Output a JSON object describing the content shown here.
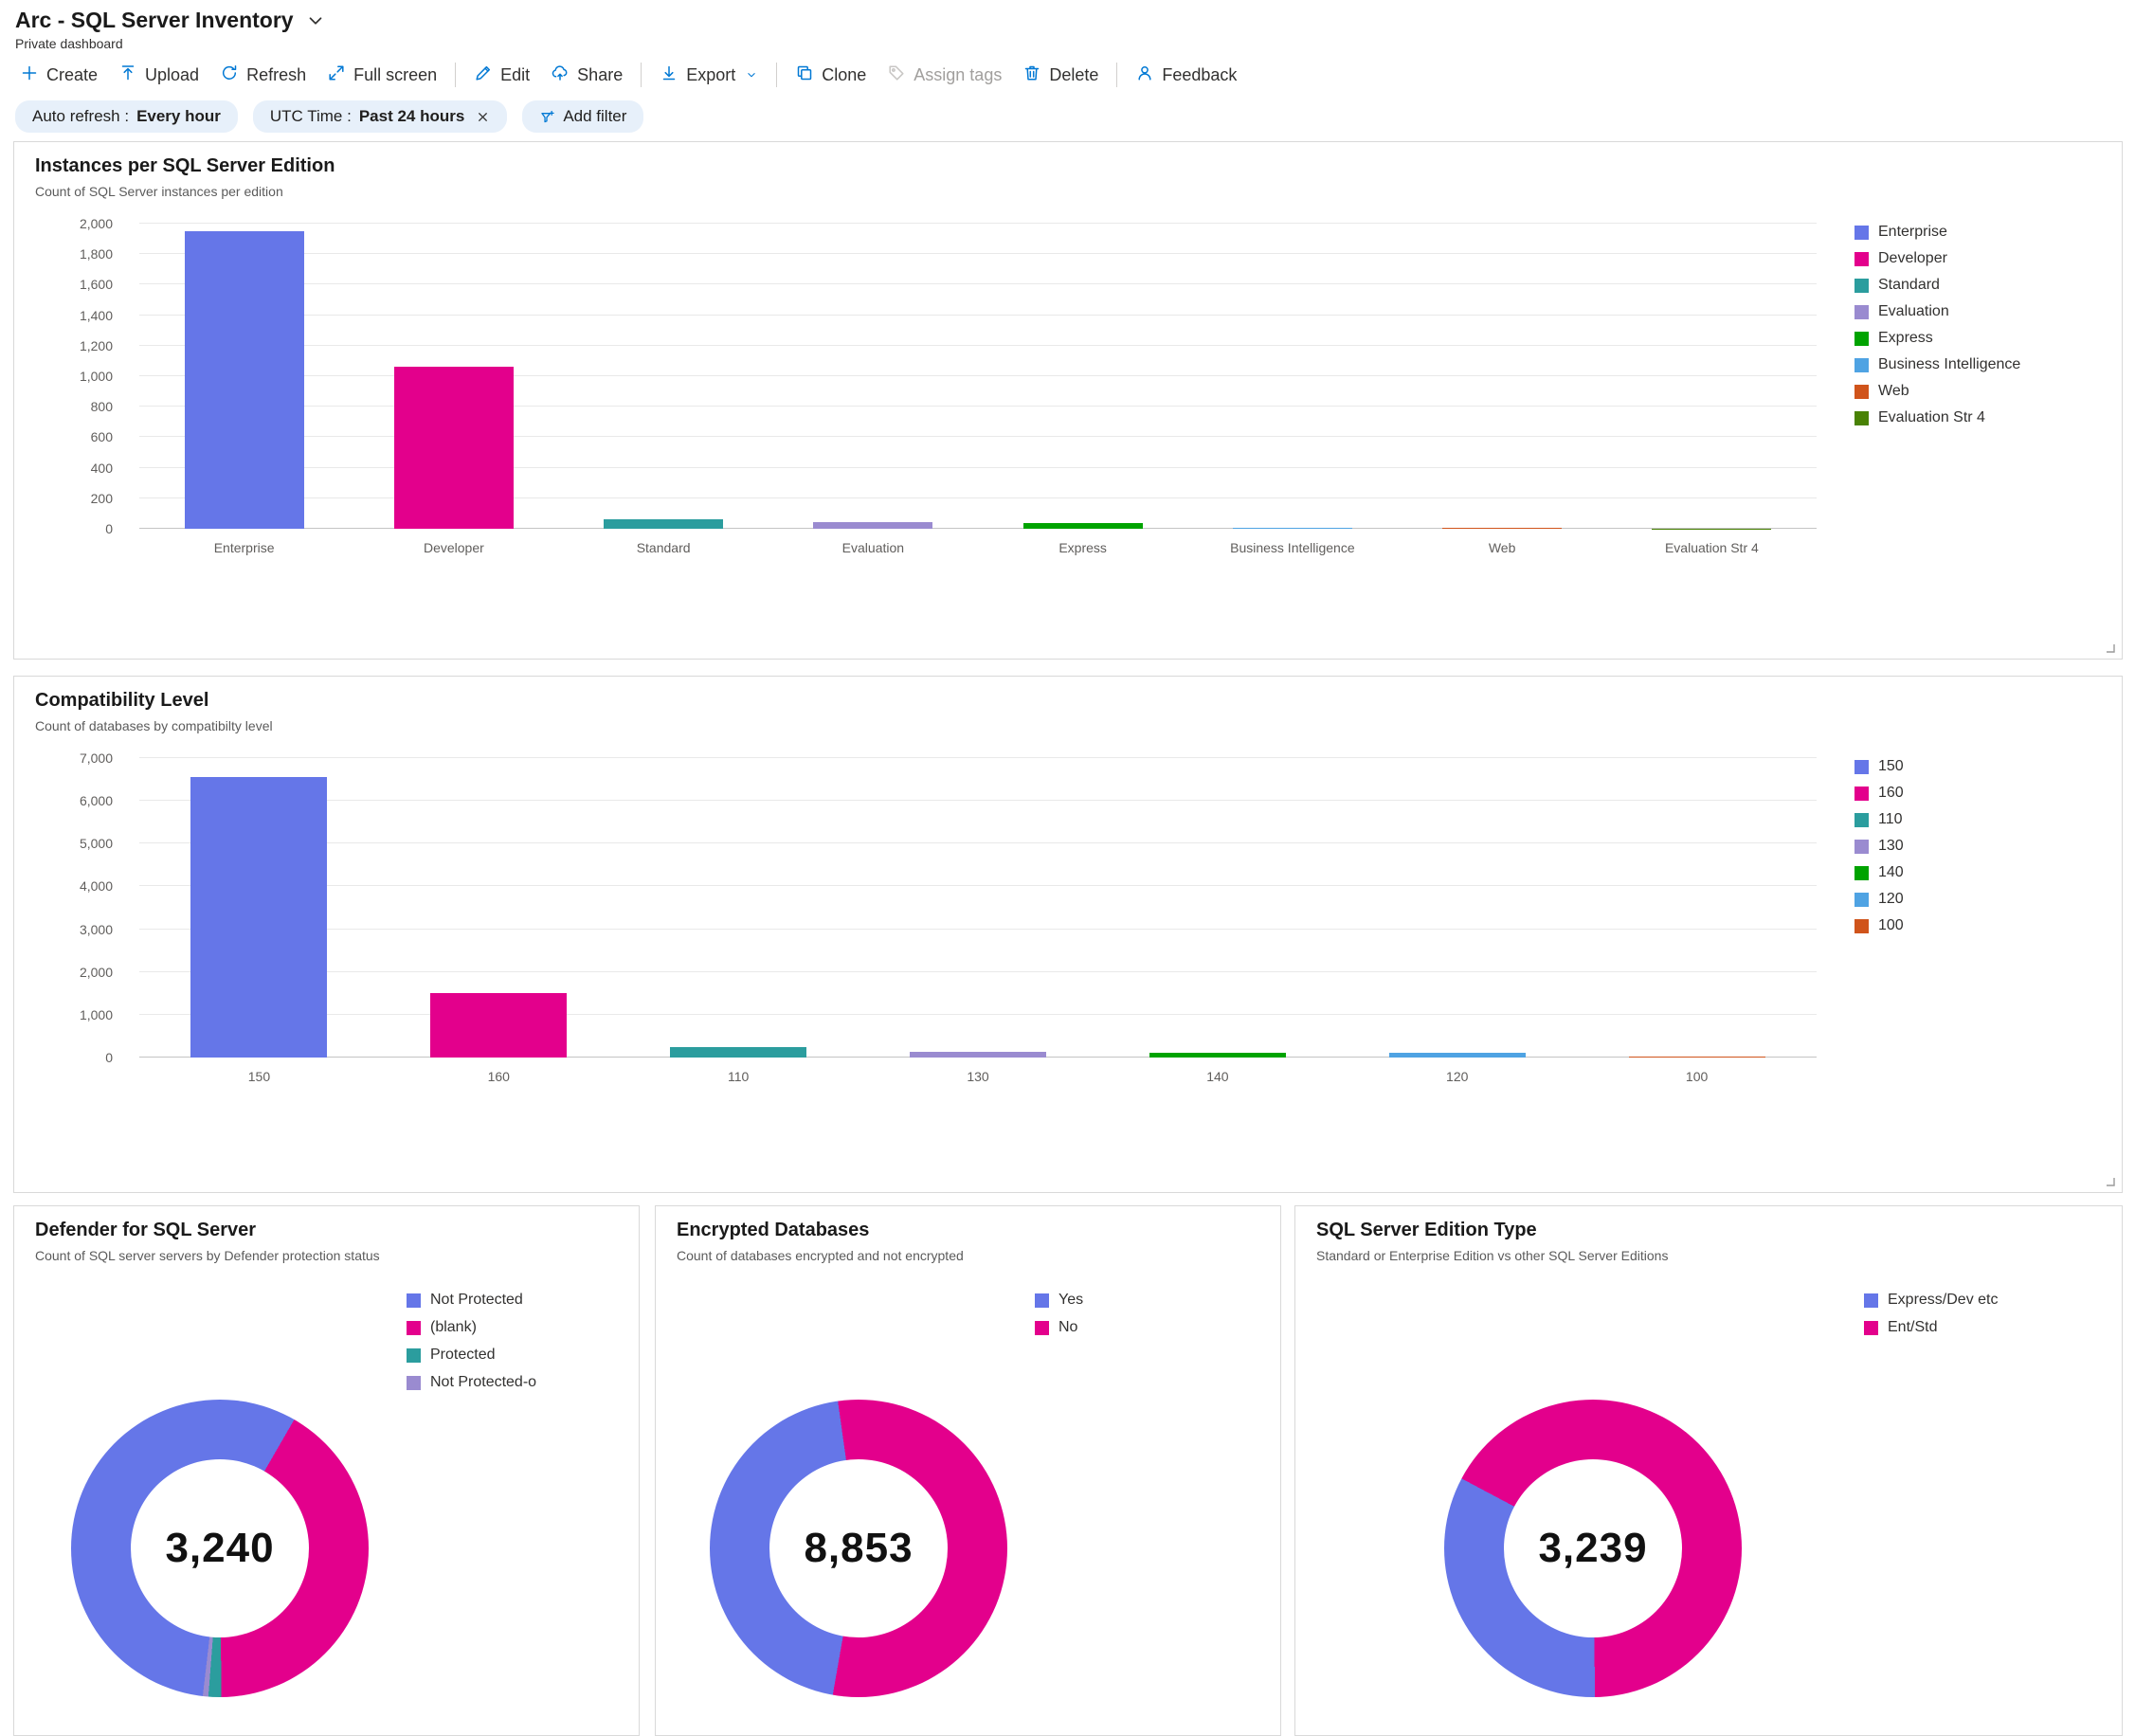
{
  "header": {
    "title": "Arc - SQL Server Inventory",
    "subtitle": "Private dashboard"
  },
  "toolbar": {
    "items": [
      {
        "label": "Create",
        "icon": "plus"
      },
      {
        "label": "Upload",
        "icon": "upload"
      },
      {
        "label": "Refresh",
        "icon": "refresh"
      },
      {
        "label": "Full screen",
        "icon": "fullscreen"
      },
      {
        "sep": true
      },
      {
        "label": "Edit",
        "icon": "edit"
      },
      {
        "label": "Share",
        "icon": "share"
      },
      {
        "sep": true
      },
      {
        "label": "Export",
        "icon": "download",
        "chevron": true
      },
      {
        "sep": true
      },
      {
        "label": "Clone",
        "icon": "clone"
      },
      {
        "label": "Assign tags",
        "icon": "tag",
        "disabled": true
      },
      {
        "label": "Delete",
        "icon": "trash"
      },
      {
        "sep": true
      },
      {
        "label": "Feedback",
        "icon": "feedback"
      }
    ]
  },
  "filters": {
    "pills": [
      {
        "label": "Auto refresh :",
        "value": "Every hour",
        "closable": false
      },
      {
        "label": "UTC Time :",
        "value": "Past 24 hours",
        "closable": true
      }
    ],
    "add_filter_label": "Add filter"
  },
  "colors": {
    "accent": "#0078d4",
    "blue": "#6576e8",
    "magenta": "#e3008c",
    "teal": "#2b9d9e",
    "purple": "#9a8bd0",
    "green": "#00a300",
    "lightblue": "#4fa3e3",
    "orange": "#d0541b",
    "darkgreen": "#498205"
  },
  "chart_data": [
    {
      "type": "bar",
      "title": "Instances per SQL Server Edition",
      "subtitle": "Count of SQL Server instances per edition",
      "categories": [
        "Enterprise",
        "Developer",
        "Standard",
        "Evaluation",
        "Express",
        "Business Intelligence",
        "Web",
        "Evaluation Str 4"
      ],
      "values": [
        1950,
        1060,
        60,
        42,
        38,
        8,
        5,
        3
      ],
      "colors": [
        "#6576e8",
        "#e3008c",
        "#2b9d9e",
        "#9a8bd0",
        "#00a300",
        "#4fa3e3",
        "#d0541b",
        "#498205"
      ],
      "ylim": [
        0,
        2000
      ],
      "ytick_step": 200,
      "grid": true,
      "legend_position": "right",
      "legend": [
        {
          "label": "Enterprise",
          "color": "#6576e8"
        },
        {
          "label": "Developer",
          "color": "#e3008c"
        },
        {
          "label": "Standard",
          "color": "#2b9d9e"
        },
        {
          "label": "Evaluation",
          "color": "#9a8bd0"
        },
        {
          "label": "Express",
          "color": "#00a300"
        },
        {
          "label": "Business Intelligence",
          "color": "#4fa3e3"
        },
        {
          "label": "Web",
          "color": "#d0541b"
        },
        {
          "label": "Evaluation Str 4",
          "color": "#498205"
        }
      ]
    },
    {
      "type": "bar",
      "title": "Compatibility Level",
      "subtitle": "Count of databases by compatibilty level",
      "categories": [
        "150",
        "160",
        "110",
        "130",
        "140",
        "120",
        "100"
      ],
      "values": [
        6550,
        1500,
        250,
        140,
        120,
        110,
        30
      ],
      "colors": [
        "#6576e8",
        "#e3008c",
        "#2b9d9e",
        "#9a8bd0",
        "#00a300",
        "#4fa3e3",
        "#d0541b"
      ],
      "ylim": [
        0,
        7000
      ],
      "ytick_step": 1000,
      "grid": true,
      "legend_position": "right",
      "legend": [
        {
          "label": "150",
          "color": "#6576e8"
        },
        {
          "label": "160",
          "color": "#e3008c"
        },
        {
          "label": "110",
          "color": "#2b9d9e"
        },
        {
          "label": "130",
          "color": "#9a8bd0"
        },
        {
          "label": "140",
          "color": "#00a300"
        },
        {
          "label": "120",
          "color": "#4fa3e3"
        },
        {
          "label": "100",
          "color": "#d0541b"
        }
      ]
    },
    {
      "type": "pie",
      "title": "Defender for SQL Server",
      "subtitle": "Count of SQL server servers by Defender protection status",
      "total": "3,240",
      "legend": [
        {
          "label": "Not Protected",
          "color": "#6576e8"
        },
        {
          "label": "(blank)",
          "color": "#e3008c"
        },
        {
          "label": "Protected",
          "color": "#2b9d9e"
        },
        {
          "label": "Not Protected-o",
          "color": "#9a8bd0"
        }
      ],
      "arc": {
        "from_deg": 30,
        "stops": [
          {
            "label": "(blank)",
            "color": "#e3008c",
            "pct": 41.5
          },
          {
            "label": "Protected",
            "color": "#2b9d9e",
            "pct": 1.4
          },
          {
            "label": "Not Protected-o",
            "color": "#9a8bd0",
            "pct": 0.6
          },
          {
            "label": "Not Protected",
            "color": "#6576e8",
            "pct": 56.5
          }
        ]
      }
    },
    {
      "type": "pie",
      "title": "Encrypted Databases",
      "subtitle": "Count of databases encrypted and not encrypted",
      "total": "8,853",
      "legend": [
        {
          "label": "Yes",
          "color": "#6576e8"
        },
        {
          "label": "No",
          "color": "#e3008c"
        }
      ],
      "arc": {
        "from_deg": -8,
        "stops": [
          {
            "label": "No",
            "color": "#e3008c",
            "pct": 55
          },
          {
            "label": "Yes",
            "color": "#6576e8",
            "pct": 45
          }
        ]
      }
    },
    {
      "type": "pie",
      "title": "SQL Server Edition Type",
      "subtitle": "Standard or Enterprise Edition vs other SQL Server Editions",
      "total": "3,239",
      "legend": [
        {
          "label": "Express/Dev etc",
          "color": "#6576e8"
        },
        {
          "label": "Ent/Std",
          "color": "#e3008c"
        }
      ],
      "arc": {
        "from_deg": -62,
        "stops": [
          {
            "label": "Ent/Std",
            "color": "#e3008c",
            "pct": 67
          },
          {
            "label": "Express/Dev etc",
            "color": "#6576e8",
            "pct": 33
          }
        ]
      }
    }
  ]
}
